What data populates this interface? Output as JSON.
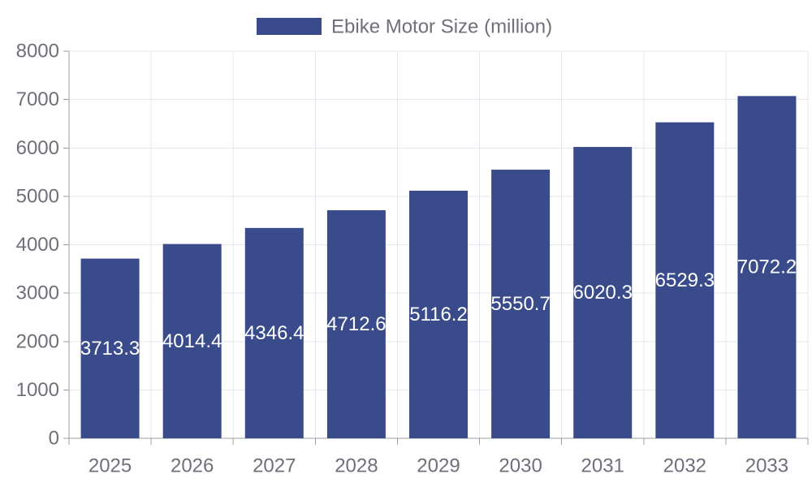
{
  "chart_data": {
    "type": "bar",
    "title": "",
    "legend": "Ebike Motor Size (million)",
    "series_name": "Ebike Motor Size (million)",
    "categories": [
      "2025",
      "2026",
      "2027",
      "2028",
      "2029",
      "2030",
      "2031",
      "2032",
      "2033"
    ],
    "values": [
      3713.3,
      4014.4,
      4346.4,
      4712.6,
      5116.2,
      5550.7,
      6020.3,
      6529.3,
      7072.2
    ],
    "value_labels": [
      "3713.3",
      "4014.4",
      "4346.4",
      "4712.6",
      "5116.2",
      "5550.7",
      "6020.3",
      "6529.3",
      "7072.2"
    ],
    "xlabel": "",
    "ylabel": "",
    "ylim": [
      0,
      8000
    ],
    "ytick_step": 1000,
    "ytick_labels": [
      "0",
      "1000",
      "2000",
      "3000",
      "4000",
      "5000",
      "6000",
      "7000",
      "8000"
    ],
    "grid": true,
    "legend_position": "top-center",
    "colors": {
      "bar": "#3A4B8C",
      "axis_text": "#6E7079",
      "value_label": "#FFFFFF",
      "grid_line": "#E4E7ED",
      "axis_line": "#9A9DA3",
      "background": "#FFFFFF"
    }
  }
}
